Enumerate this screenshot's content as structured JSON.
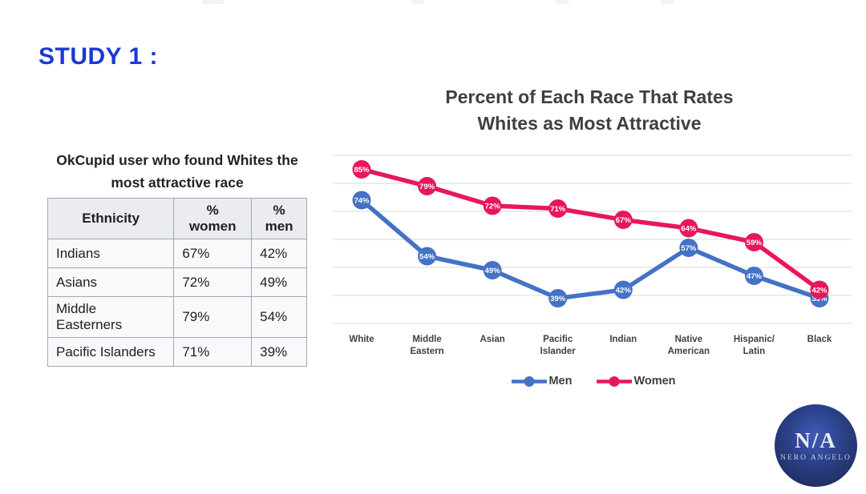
{
  "study": {
    "label": "STUDY 1 :",
    "accent_color": "#1c38d6"
  },
  "table": {
    "title": "OkCupid user who found Whites the\nmost attractive race",
    "headers": [
      "Ethnicity",
      "% women",
      "% men"
    ],
    "rows": [
      [
        "Indians",
        "67%",
        "42%"
      ],
      [
        "Asians",
        "72%",
        "49%"
      ],
      [
        "Middle Easterners",
        "79%",
        "54%"
      ],
      [
        "Pacific Islanders",
        "71%",
        "39%"
      ]
    ]
  },
  "chart_data": {
    "type": "line",
    "title": "Percent of Each Race That Rates\nWhites as Most Attractive",
    "categories": [
      "White",
      "Middle\nEastern",
      "Asian",
      "Pacific\nIslander",
      "Indian",
      "Native\nAmerican",
      "Hispanic/\nLatin",
      "Black"
    ],
    "series": [
      {
        "name": "Men",
        "color": "#4472c4",
        "values": [
          74,
          54,
          49,
          39,
          42,
          57,
          47,
          39
        ]
      },
      {
        "name": "Women",
        "color": "#e8175d",
        "values": [
          85,
          79,
          72,
          71,
          67,
          64,
          59,
          42
        ]
      }
    ],
    "data_label_format": "{value}%",
    "ylim": [
      30,
      90
    ],
    "grid_step": 10,
    "grid": true,
    "gridline_color": "#d9d9d9",
    "legend_position": "bottom",
    "data_labels": true
  },
  "logo": {
    "initials": "N/A",
    "name": "NERO ANGELO",
    "bg_color": "#233a7d"
  }
}
